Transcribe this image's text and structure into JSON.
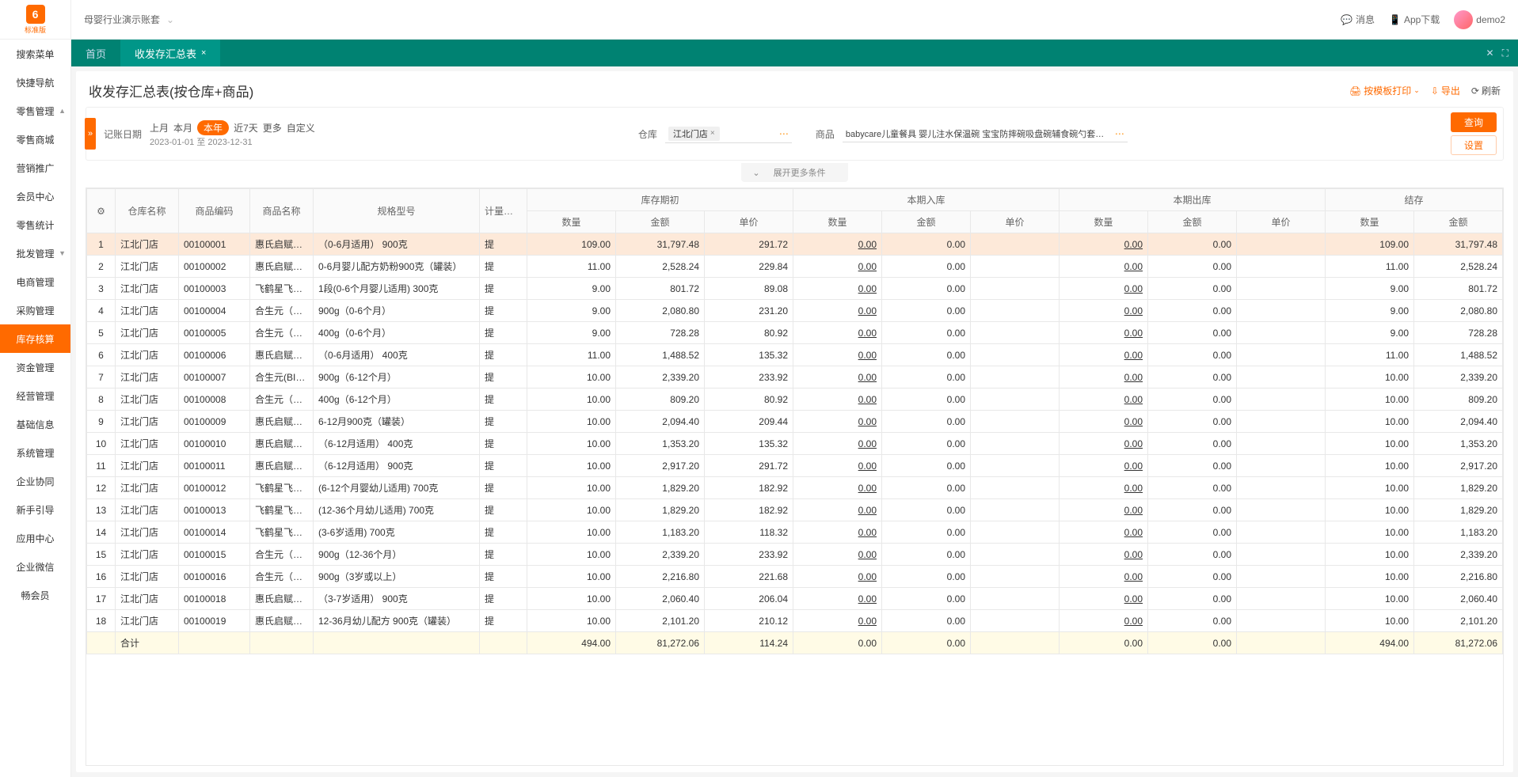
{
  "brand": {
    "logo_char": "6",
    "sub": "标准版"
  },
  "nav": [
    {
      "label": "搜索菜单"
    },
    {
      "label": "快捷导航"
    },
    {
      "label": "零售管理",
      "chev": "▲"
    },
    {
      "label": "零售商城"
    },
    {
      "label": "营销推广"
    },
    {
      "label": "会员中心"
    },
    {
      "label": "零售统计"
    },
    {
      "label": "批发管理",
      "chev": "▼"
    },
    {
      "label": "电商管理"
    },
    {
      "label": "采购管理"
    },
    {
      "label": "库存核算",
      "active": true
    },
    {
      "label": "资金管理"
    },
    {
      "label": "经营管理"
    },
    {
      "label": "基础信息"
    },
    {
      "label": "系统管理"
    },
    {
      "label": "企业协同"
    },
    {
      "label": "新手引导"
    },
    {
      "label": "应用中心"
    },
    {
      "label": "企业微信"
    },
    {
      "label": "畅会员"
    }
  ],
  "topbar": {
    "account": "母婴行业演示账套",
    "msg": "消息",
    "app": "App下载",
    "user": "demo2"
  },
  "tabs": [
    {
      "label": "首页"
    },
    {
      "label": "收发存汇总表",
      "active": true,
      "closable": true
    }
  ],
  "page": {
    "title": "收发存汇总表(按仓库+商品)"
  },
  "head_actions": {
    "print": "按模板打印",
    "export": "导出",
    "refresh": "刷新"
  },
  "filter": {
    "date_label": "记账日期",
    "shortcuts": [
      "上月",
      "本月",
      "本年",
      "近7天",
      "更多",
      "自定义"
    ],
    "shortcut_active": 2,
    "range": "2023-01-01 至 2023-12-31",
    "wh_label": "仓库",
    "wh_value": "江北门店",
    "goods_label": "商品",
    "goods_value": "babycare儿童餐具 婴儿注水保温碗 宝宝防摔碗吸盘碗辅食碗勺套装 雀湖绿｜...",
    "query": "查询",
    "settings": "设置",
    "expand": "展开更多条件"
  },
  "columns": {
    "gear": "⚙",
    "wh": "仓库名称",
    "code": "商品编码",
    "name": "商品名称",
    "spec": "规格型号",
    "unit": "计量单位",
    "g1": "库存期初",
    "g2": "本期入库",
    "g3": "本期出库",
    "g4": "结存",
    "qty": "数量",
    "amt": "金额",
    "price": "单价"
  },
  "rows": [
    {
      "i": 1,
      "wh": "江北门店",
      "code": "00100001",
      "name": "惠氏启赋（...",
      "spec": "（0-6月适用） 900克",
      "unit": "提",
      "q1": "109.00",
      "a1": "31,797.48",
      "p1": "291.72",
      "q2": "0.00",
      "a2": "0.00",
      "p2": "",
      "q3": "0.00",
      "a3": "0.00",
      "p3": "",
      "q4": "109.00",
      "a4": "31,797.48",
      "active": true
    },
    {
      "i": 2,
      "wh": "江北门店",
      "code": "00100002",
      "name": "惠氏启赋（...",
      "spec": "0-6月婴儿配方奶粉900克（罐装）",
      "unit": "提",
      "q1": "11.00",
      "a1": "2,528.24",
      "p1": "229.84",
      "q2": "0.00",
      "a2": "0.00",
      "p2": "",
      "q3": "0.00",
      "a3": "0.00",
      "p3": "",
      "q4": "11.00",
      "a4": "2,528.24"
    },
    {
      "i": 3,
      "wh": "江北门店",
      "code": "00100003",
      "name": "飞鹤星飞帆...",
      "spec": "1段(0-6个月婴儿适用) 300克",
      "unit": "提",
      "q1": "9.00",
      "a1": "801.72",
      "p1": "89.08",
      "q2": "0.00",
      "a2": "0.00",
      "p2": "",
      "q3": "0.00",
      "a3": "0.00",
      "p3": "",
      "q4": "9.00",
      "a4": "801.72"
    },
    {
      "i": 4,
      "wh": "江北门店",
      "code": "00100004",
      "name": "合生元（BI...",
      "spec": "900g（0-6个月）",
      "unit": "提",
      "q1": "9.00",
      "a1": "2,080.80",
      "p1": "231.20",
      "q2": "0.00",
      "a2": "0.00",
      "p2": "",
      "q3": "0.00",
      "a3": "0.00",
      "p3": "",
      "q4": "9.00",
      "a4": "2,080.80"
    },
    {
      "i": 5,
      "wh": "江北门店",
      "code": "00100005",
      "name": "合生元（BI...",
      "spec": "400g（0-6个月）",
      "unit": "提",
      "q1": "9.00",
      "a1": "728.28",
      "p1": "80.92",
      "q2": "0.00",
      "a2": "0.00",
      "p2": "",
      "q3": "0.00",
      "a3": "0.00",
      "p3": "",
      "q4": "9.00",
      "a4": "728.28"
    },
    {
      "i": 6,
      "wh": "江北门店",
      "code": "00100006",
      "name": "惠氏启赋（...",
      "spec": "（0-6月适用） 400克",
      "unit": "提",
      "q1": "11.00",
      "a1": "1,488.52",
      "p1": "135.32",
      "q2": "0.00",
      "a2": "0.00",
      "p2": "",
      "q3": "0.00",
      "a3": "0.00",
      "p3": "",
      "q4": "11.00",
      "a4": "1,488.52"
    },
    {
      "i": 7,
      "wh": "江北门店",
      "code": "00100007",
      "name": "合生元(BIO...",
      "spec": "900g（6-12个月）",
      "unit": "提",
      "q1": "10.00",
      "a1": "2,339.20",
      "p1": "233.92",
      "q2": "0.00",
      "a2": "0.00",
      "p2": "",
      "q3": "0.00",
      "a3": "0.00",
      "p3": "",
      "q4": "10.00",
      "a4": "2,339.20"
    },
    {
      "i": 8,
      "wh": "江北门店",
      "code": "00100008",
      "name": "合生元（BI...",
      "spec": "400g（6-12个月）",
      "unit": "提",
      "q1": "10.00",
      "a1": "809.20",
      "p1": "80.92",
      "q2": "0.00",
      "a2": "0.00",
      "p2": "",
      "q3": "0.00",
      "a3": "0.00",
      "p3": "",
      "q4": "10.00",
      "a4": "809.20"
    },
    {
      "i": 9,
      "wh": "江北门店",
      "code": "00100009",
      "name": "惠氏启赋（...",
      "spec": "6-12月900克（罐装）",
      "unit": "提",
      "q1": "10.00",
      "a1": "2,094.40",
      "p1": "209.44",
      "q2": "0.00",
      "a2": "0.00",
      "p2": "",
      "q3": "0.00",
      "a3": "0.00",
      "p3": "",
      "q4": "10.00",
      "a4": "2,094.40"
    },
    {
      "i": 10,
      "wh": "江北门店",
      "code": "00100010",
      "name": "惠氏启赋（...",
      "spec": "（6-12月适用） 400克",
      "unit": "提",
      "q1": "10.00",
      "a1": "1,353.20",
      "p1": "135.32",
      "q2": "0.00",
      "a2": "0.00",
      "p2": "",
      "q3": "0.00",
      "a3": "0.00",
      "p3": "",
      "q4": "10.00",
      "a4": "1,353.20"
    },
    {
      "i": 11,
      "wh": "江北门店",
      "code": "00100011",
      "name": "惠氏启赋（...",
      "spec": "（6-12月适用） 900克",
      "unit": "提",
      "q1": "10.00",
      "a1": "2,917.20",
      "p1": "291.72",
      "q2": "0.00",
      "a2": "0.00",
      "p2": "",
      "q3": "0.00",
      "a3": "0.00",
      "p3": "",
      "q4": "10.00",
      "a4": "2,917.20"
    },
    {
      "i": 12,
      "wh": "江北门店",
      "code": "00100012",
      "name": "飞鹤星飞帆...",
      "spec": "(6-12个月婴幼儿适用) 700克",
      "unit": "提",
      "q1": "10.00",
      "a1": "1,829.20",
      "p1": "182.92",
      "q2": "0.00",
      "a2": "0.00",
      "p2": "",
      "q3": "0.00",
      "a3": "0.00",
      "p3": "",
      "q4": "10.00",
      "a4": "1,829.20"
    },
    {
      "i": 13,
      "wh": "江北门店",
      "code": "00100013",
      "name": "飞鹤星飞帆...",
      "spec": "(12-36个月幼儿适用) 700克",
      "unit": "提",
      "q1": "10.00",
      "a1": "1,829.20",
      "p1": "182.92",
      "q2": "0.00",
      "a2": "0.00",
      "p2": "",
      "q3": "0.00",
      "a3": "0.00",
      "p3": "",
      "q4": "10.00",
      "a4": "1,829.20"
    },
    {
      "i": 14,
      "wh": "江北门店",
      "code": "00100014",
      "name": "飞鹤星飞帆...",
      "spec": "(3-6岁适用) 700克",
      "unit": "提",
      "q1": "10.00",
      "a1": "1,183.20",
      "p1": "118.32",
      "q2": "0.00",
      "a2": "0.00",
      "p2": "",
      "q3": "0.00",
      "a3": "0.00",
      "p3": "",
      "q4": "10.00",
      "a4": "1,183.20"
    },
    {
      "i": 15,
      "wh": "江北门店",
      "code": "00100015",
      "name": "合生元（BI...",
      "spec": "900g（12-36个月）",
      "unit": "提",
      "q1": "10.00",
      "a1": "2,339.20",
      "p1": "233.92",
      "q2": "0.00",
      "a2": "0.00",
      "p2": "",
      "q3": "0.00",
      "a3": "0.00",
      "p3": "",
      "q4": "10.00",
      "a4": "2,339.20"
    },
    {
      "i": 16,
      "wh": "江北门店",
      "code": "00100016",
      "name": "合生元（BI...",
      "spec": "900g（3岁或以上）",
      "unit": "提",
      "q1": "10.00",
      "a1": "2,216.80",
      "p1": "221.68",
      "q2": "0.00",
      "a2": "0.00",
      "p2": "",
      "q3": "0.00",
      "a3": "0.00",
      "p3": "",
      "q4": "10.00",
      "a4": "2,216.80"
    },
    {
      "i": 17,
      "wh": "江北门店",
      "code": "00100018",
      "name": "惠氏启赋（...",
      "spec": "（3-7岁适用） 900克",
      "unit": "提",
      "q1": "10.00",
      "a1": "2,060.40",
      "p1": "206.04",
      "q2": "0.00",
      "a2": "0.00",
      "p2": "",
      "q3": "0.00",
      "a3": "0.00",
      "p3": "",
      "q4": "10.00",
      "a4": "2,060.40"
    },
    {
      "i": 18,
      "wh": "江北门店",
      "code": "00100019",
      "name": "惠氏启赋（...",
      "spec": "12-36月幼儿配方 900克（罐装）",
      "unit": "提",
      "q1": "10.00",
      "a1": "2,101.20",
      "p1": "210.12",
      "q2": "0.00",
      "a2": "0.00",
      "p2": "",
      "q3": "0.00",
      "a3": "0.00",
      "p3": "",
      "q4": "10.00",
      "a4": "2,101.20"
    }
  ],
  "total": {
    "label": "合计",
    "q1": "494.00",
    "a1": "81,272.06",
    "p1": "114.24",
    "q2": "0.00",
    "a2": "0.00",
    "p2": "",
    "q3": "0.00",
    "a3": "0.00",
    "p3": "",
    "q4": "494.00",
    "a4": "81,272.06"
  }
}
